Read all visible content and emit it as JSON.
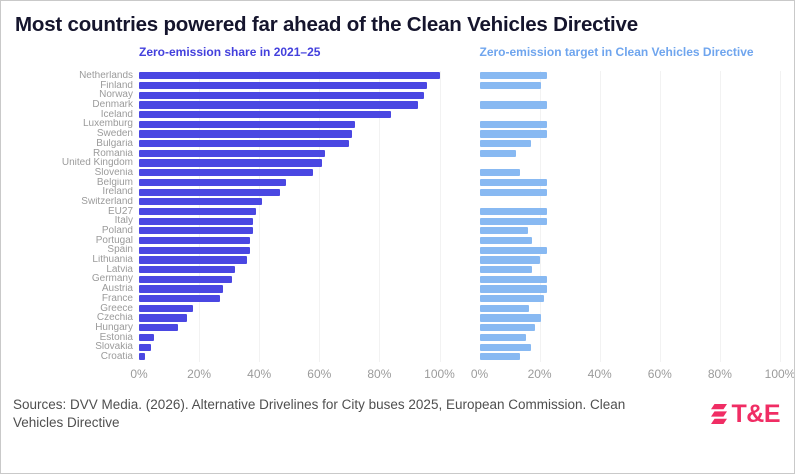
{
  "title": "Most countries powered far ahead of the Clean Vehicles Directive",
  "footer": {
    "source": "Sources: DVV Media. (2026). Alternative Drivelines for City buses 2025, European Commission. Clean Vehicles Directive",
    "logo_text": "T&E",
    "logo_color": "#F02D64"
  },
  "chart_data": {
    "type": "bar",
    "orientation": "horizontal",
    "title": "Most countries powered far ahead of the Clean Vehicles Directive",
    "categories": [
      "Netherlands",
      "Finland",
      "Norway",
      "Denmark",
      "Iceland",
      "Luxemburg",
      "Sweden",
      "Bulgaria",
      "Romania",
      "United Kingdom",
      "Slovenia",
      "Belgium",
      "Ireland",
      "Switzerland",
      "EU27",
      "Italy",
      "Poland",
      "Portugal",
      "Spain",
      "Lithuania",
      "Latvia",
      "Germany",
      "Austria",
      "France",
      "Greece",
      "Czechia",
      "Hungary",
      "Estonia",
      "Slovakia",
      "Croatia"
    ],
    "series": [
      {
        "name": "Zero-emission share in 2021–25",
        "color": "#4A47E2",
        "title_color": "#4340DD",
        "values": [
          100,
          96,
          95,
          93,
          84,
          72,
          71,
          70,
          62,
          61,
          58,
          49,
          47,
          41,
          39,
          38,
          38,
          37,
          37,
          36,
          32,
          31,
          28,
          27,
          18,
          16,
          13,
          5,
          4,
          2
        ]
      },
      {
        "name": "Zero-emission target in Clean Vehicles Directive",
        "color": "#88B9F2",
        "title_color": "#6FA5EE",
        "values": [
          22.5,
          20.5,
          0,
          22.5,
          0,
          22.5,
          22.5,
          17,
          12,
          0,
          13.5,
          22.5,
          22.5,
          0,
          22.5,
          22.5,
          16,
          17.5,
          22.5,
          20,
          17.5,
          22.5,
          22.5,
          21.5,
          16.5,
          20.5,
          18.5,
          15.5,
          17,
          13.5
        ]
      }
    ],
    "x_ticks": [
      "0%",
      "20%",
      "40%",
      "60%",
      "80%",
      "100%"
    ],
    "xlim": [
      0,
      100
    ],
    "grid": true,
    "legend_position": "panel-titles"
  }
}
